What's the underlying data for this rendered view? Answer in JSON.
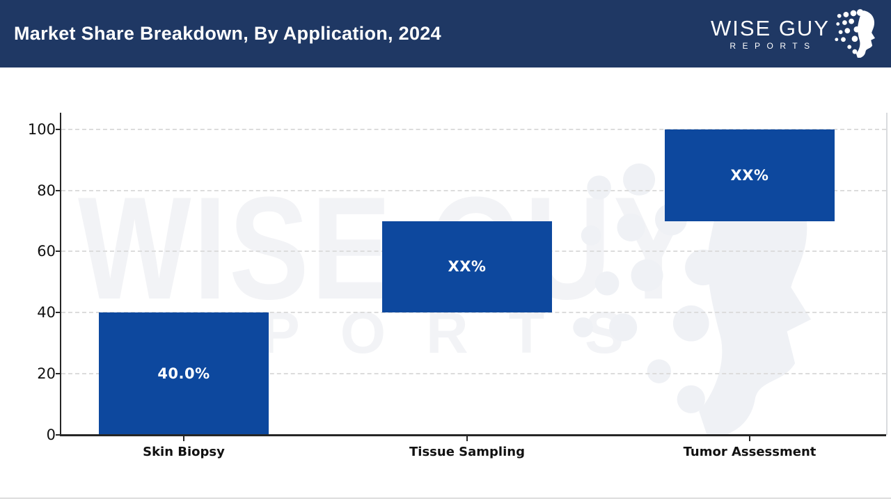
{
  "header": {
    "title": "Market Share Breakdown, By Application, 2024",
    "logo": {
      "line1": "WISE GUY",
      "line2": "REPORTS"
    }
  },
  "watermark": {
    "line1": "WISE GUY",
    "line2": "REPORTS"
  },
  "chart_data": {
    "type": "bar",
    "variant": "floating-segment-bars",
    "title": "Market Share Breakdown, By Application, 2024",
    "categories": [
      "Skin Biopsy",
      "Tissue Sampling",
      "Tumor Assessment"
    ],
    "segments": [
      {
        "category": "Skin Biopsy",
        "from": 0,
        "to": 40,
        "label": "40.0%"
      },
      {
        "category": "Tissue Sampling",
        "from": 40,
        "to": 70,
        "label": "XX%"
      },
      {
        "category": "Tumor Assessment",
        "from": 70,
        "to": 100,
        "label": "XX%"
      }
    ],
    "ylim": [
      0,
      100
    ],
    "yticks": [
      0,
      20,
      40,
      60,
      80,
      100
    ],
    "grid": "dashed-horizontal",
    "legend": "none",
    "bar_color": "#0d489e",
    "bar_label_color": "#ffffff"
  },
  "colors": {
    "header_bg": "#1f3864",
    "bar": "#0d489e",
    "axis": "#262626",
    "grid": "#dcdcdc",
    "watermark": "#f2f3f6"
  }
}
